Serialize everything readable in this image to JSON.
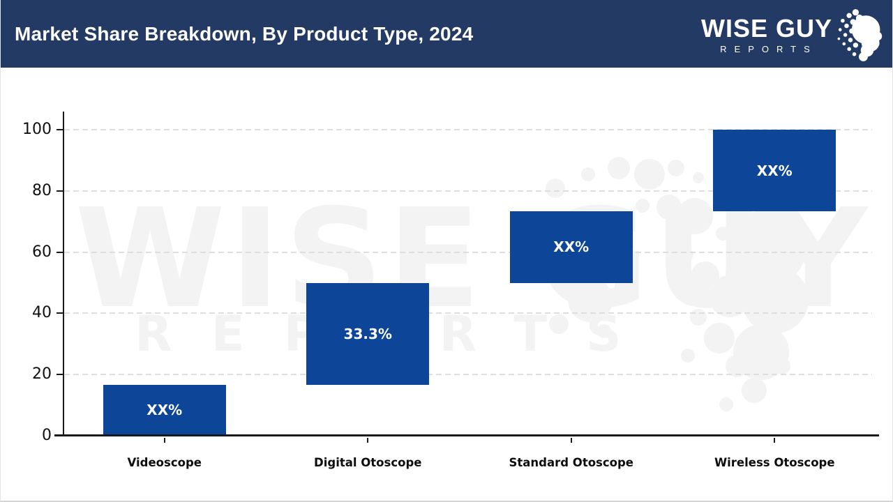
{
  "header": {
    "title": "Market Share Breakdown, By Product Type, 2024",
    "logo": {
      "name_line": "WISE GUY",
      "sub_line": "REPORTS"
    }
  },
  "watermark": {
    "name_line": "WISE GUY",
    "sub_line": "REPORTS"
  },
  "chart_data": {
    "type": "bar",
    "variant": "floating-waterfall",
    "title": "Market Share Breakdown, By Product Type, 2024",
    "categories": [
      "Videoscope",
      "Digital Otoscope",
      "Standard Otoscope",
      "Wireless Otoscope"
    ],
    "bars": [
      {
        "category": "Videoscope",
        "from": 0,
        "to": 16.7,
        "label": "XX%"
      },
      {
        "category": "Digital Otoscope",
        "from": 16.7,
        "to": 50,
        "label": "33.3%"
      },
      {
        "category": "Standard Otoscope",
        "from": 50,
        "to": 73.3,
        "label": "XX%"
      },
      {
        "category": "Wireless Otoscope",
        "from": 73.3,
        "to": 100,
        "label": "XX%"
      }
    ],
    "xlabel": "",
    "ylabel": "",
    "ylim": [
      0,
      100
    ],
    "yticks": [
      0,
      20,
      40,
      60,
      80,
      100
    ],
    "grid": {
      "horizontal": true,
      "style": "dashed",
      "color": "#dedede"
    },
    "legend_position": "none",
    "bar_color": "#0d4599",
    "bar_label_color": "#ffffff",
    "axis_color": "#1a1a1a",
    "header_color": "#233a64"
  }
}
